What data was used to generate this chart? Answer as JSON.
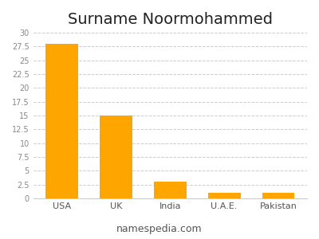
{
  "title": "Surname Noormohammed",
  "categories": [
    "USA",
    "UK",
    "India",
    "U.A.E.",
    "Pakistan"
  ],
  "values": [
    28,
    15,
    3,
    1,
    1
  ],
  "bar_color": "#FFA500",
  "ylim": [
    0,
    30
  ],
  "yticks": [
    0,
    2.5,
    5,
    7.5,
    10,
    12.5,
    15,
    17.5,
    20,
    22.5,
    25,
    27.5,
    30
  ],
  "ytick_labels": [
    "0",
    "2.5",
    "5",
    "7.5",
    "10",
    "12.5",
    "15",
    "17.5",
    "20",
    "22.5",
    "25",
    "27.5",
    "30"
  ],
  "grid_color": "#cccccc",
  "grid_style": "--",
  "background_color": "#ffffff",
  "title_fontsize": 14,
  "tick_fontsize": 7,
  "footer_text": "namespedia.com",
  "footer_fontsize": 9
}
